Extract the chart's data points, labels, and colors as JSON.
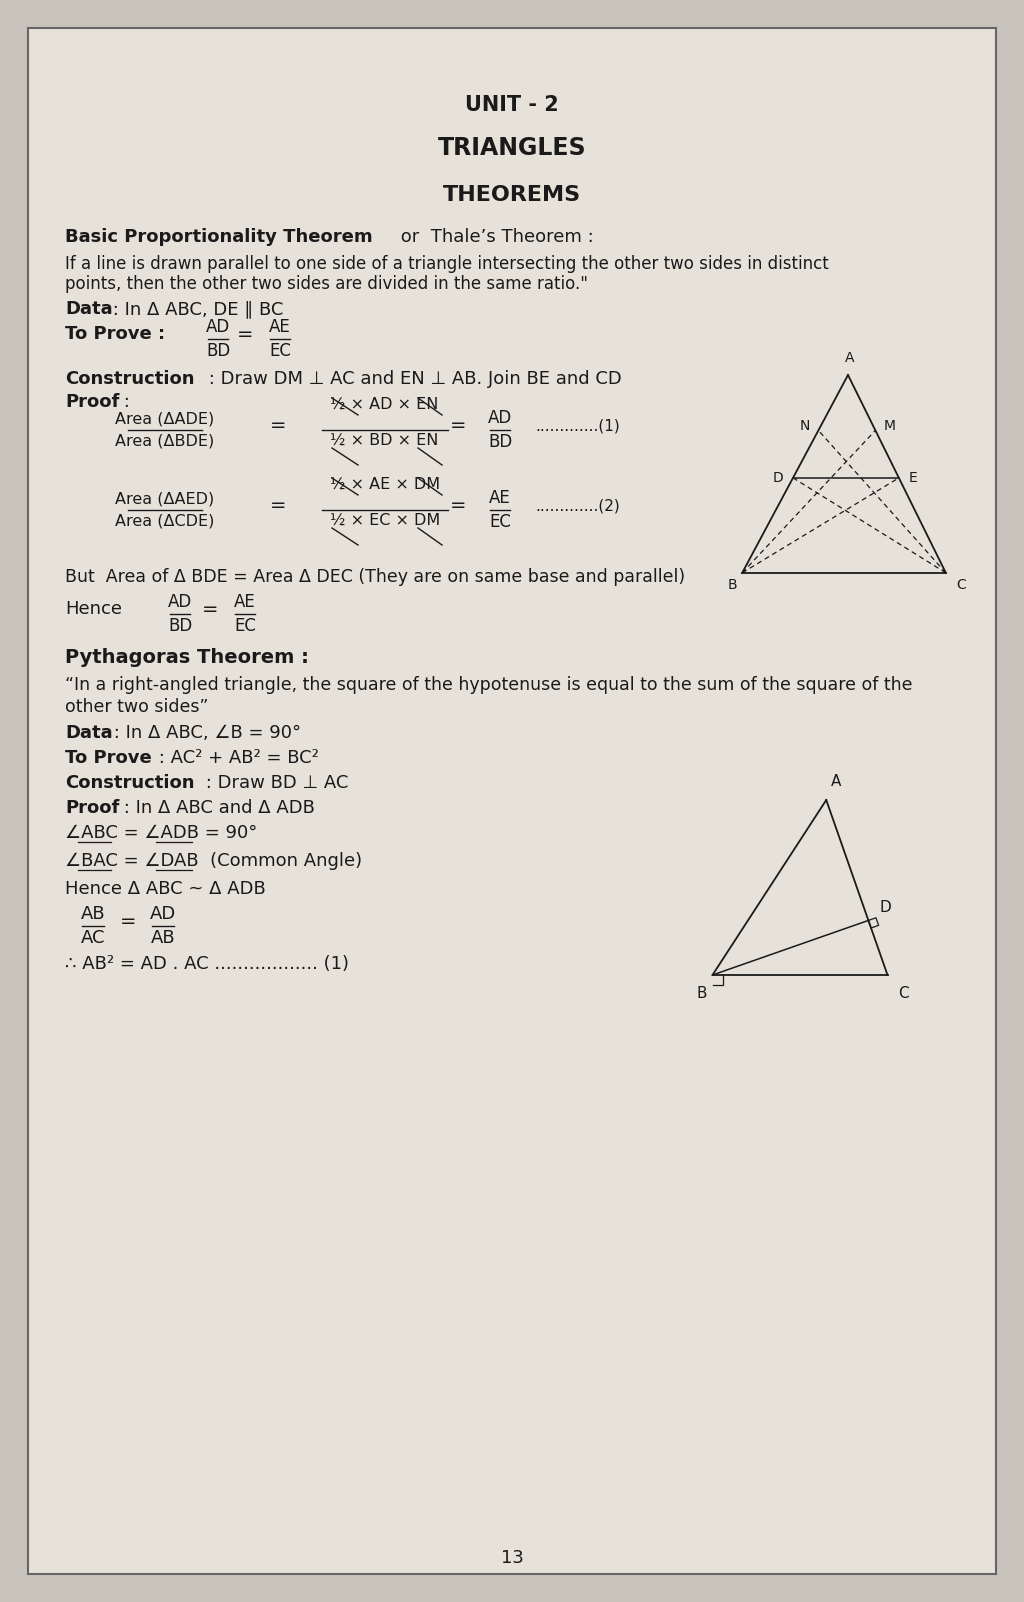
{
  "bg_color": "#c8c4bc",
  "page_bg": "#e6e2da",
  "text_color": "#1a1a1a",
  "title1": "UNIT - 2",
  "title2": "TRIANGLES",
  "title3": "THEOREMS",
  "page_num": "13"
}
